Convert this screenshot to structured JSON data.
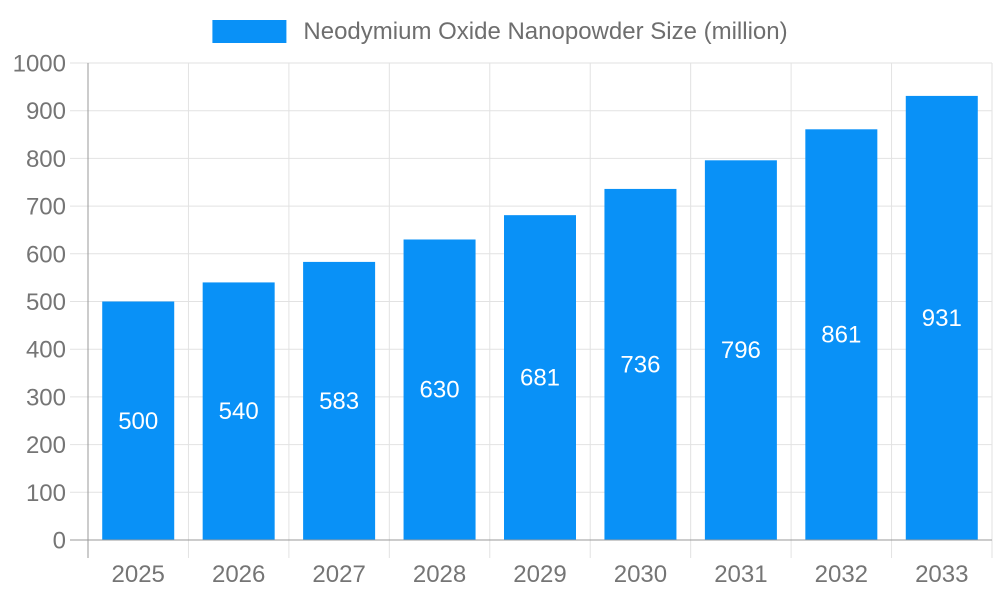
{
  "chart_data": {
    "type": "bar",
    "title": "Neodymium Oxide Nanopowder Size (million)",
    "categories": [
      "2025",
      "2026",
      "2027",
      "2028",
      "2029",
      "2030",
      "2031",
      "2032",
      "2033"
    ],
    "values": [
      500,
      540,
      583,
      630,
      681,
      736,
      796,
      861,
      931
    ],
    "xlabel": "",
    "ylabel": "",
    "ylim": [
      0,
      1000
    ],
    "yticks": [
      0,
      100,
      200,
      300,
      400,
      500,
      600,
      700,
      800,
      900,
      1000
    ],
    "grid": true,
    "legend_position": "top-center",
    "value_labels": "inside-center"
  },
  "colors": {
    "bar": "#0991f7",
    "grid": "#e2e2e2",
    "axis": "#999999",
    "tick_text": "#757575",
    "legend_text": "#6e6e6e",
    "bar_label": "#ffffff",
    "background": "#ffffff"
  }
}
